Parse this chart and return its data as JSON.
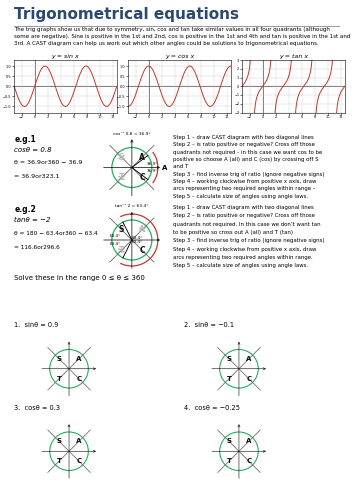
{
  "title": "Trigonometrical equations",
  "title_color": "#2c4870",
  "intro_lines": [
    "The trig graphs show us that due to symmetry, sin, cos and tan take similar values in all four quadrants (although",
    "some are negative). Sine is positive in the 1st and 2nd, cos is positive in the 1st and 4th and tan is positive in the 1st and",
    "3rd. A CAST diagram can help us work out which other angles could be solutions to trigonometrical equations."
  ],
  "graph_labels": [
    "y = sin x",
    "y = cos x",
    "y = tan x"
  ],
  "eg1_label": "e.g.1",
  "eg1_eq": "cosθ = 0.8",
  "eg1_lines": [
    "θ = 36.9or360 − 36.9",
    "= 36.9or323.1"
  ],
  "eg2_label": "e.g.2",
  "eg2_eq": "tanθ = −2",
  "eg2_lines": [
    "θ = 180 − 63.4or360 − 63.4",
    "= 116.6or296.6"
  ],
  "steps_eg1": [
    "Step 1 – draw CAST diagram with two diagonal lines",
    "Step 2 – is ratio positive or negative? Cross off those",
    "quadrants not required - in this case we want cos to be",
    "positive so choose A (all) and C (cos) by crossing off S",
    "and T",
    "Step 3 – find inverse trig of ratio (ignore negative signs)",
    "Step 4 – working clockwise from positive x axis, draw",
    "arcs representing two required angles within range –",
    "Step 5 – calculate size of angles using angle laws."
  ],
  "steps_eg2": [
    "Step 1 – draw CAST diagram with two diagonal lines",
    "Step 2 – is ratio positive or negative? Cross off those",
    "quadrants not required. In this case we don’t want tan",
    "to be positive so cross out A (all) and T (tan)",
    "Step 3 – find inverse trig of ratio (ignore negative signs)",
    "Step 4 – working clockwise from positive x axis, draw",
    "arcs representing two required angles within range.",
    "Step 5 – calculate size of angles using angle laws."
  ],
  "solve_text": "Solve these in the range 0 ≤ θ ≤ 360",
  "problems": [
    "1.  sinθ = 0.9",
    "2.  sinθ = −0.1",
    "3.  cosθ = 0.3",
    "4.  cosθ = −0.25"
  ],
  "background": "#ffffff",
  "line_color": "#c0392b",
  "graph_grid_color": "#cccccc",
  "circle_color": "#27ae60",
  "arc_color": "#c0392b",
  "diag_color": "#666666",
  "title_fontsize": 11,
  "intro_fontsize": 4.0,
  "body_fontsize": 4.2,
  "step_fontsize": 3.9
}
